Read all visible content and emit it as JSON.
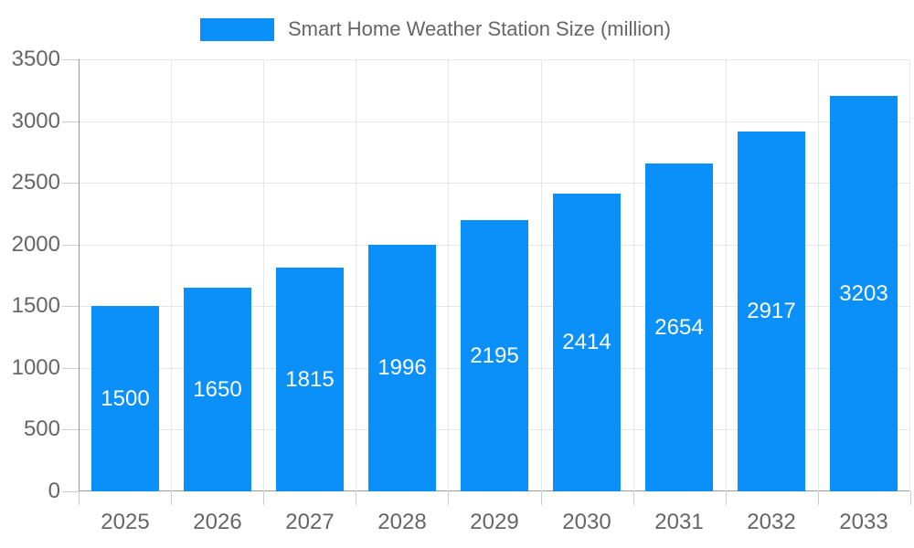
{
  "chart_data": {
    "type": "bar",
    "title": "Smart Home Weather Station Size (million)",
    "legend": {
      "label": "Smart Home Weather Station Size (million)",
      "position": "top"
    },
    "categories": [
      "2025",
      "2026",
      "2027",
      "2028",
      "2029",
      "2030",
      "2031",
      "2032",
      "2033"
    ],
    "series": [
      {
        "name": "Smart Home Weather Station Size (million)",
        "values": [
          1500,
          1650,
          1815,
          1996,
          2195,
          2414,
          2654,
          2917,
          3203
        ]
      }
    ],
    "xlabel": "",
    "ylabel": "",
    "ylim": [
      0,
      3500
    ],
    "yticks": [
      0,
      500,
      1000,
      1500,
      2000,
      2500,
      3000,
      3500
    ],
    "grid": true,
    "value_labels_position": "inside-center"
  },
  "colors": {
    "bar": "#0a90f8",
    "value_label": "#ffffff",
    "axis_text": "#666666",
    "axis_line": "#999999",
    "tick": "#cccccc",
    "gridline": "#e6e6e6",
    "background": "#ffffff"
  }
}
